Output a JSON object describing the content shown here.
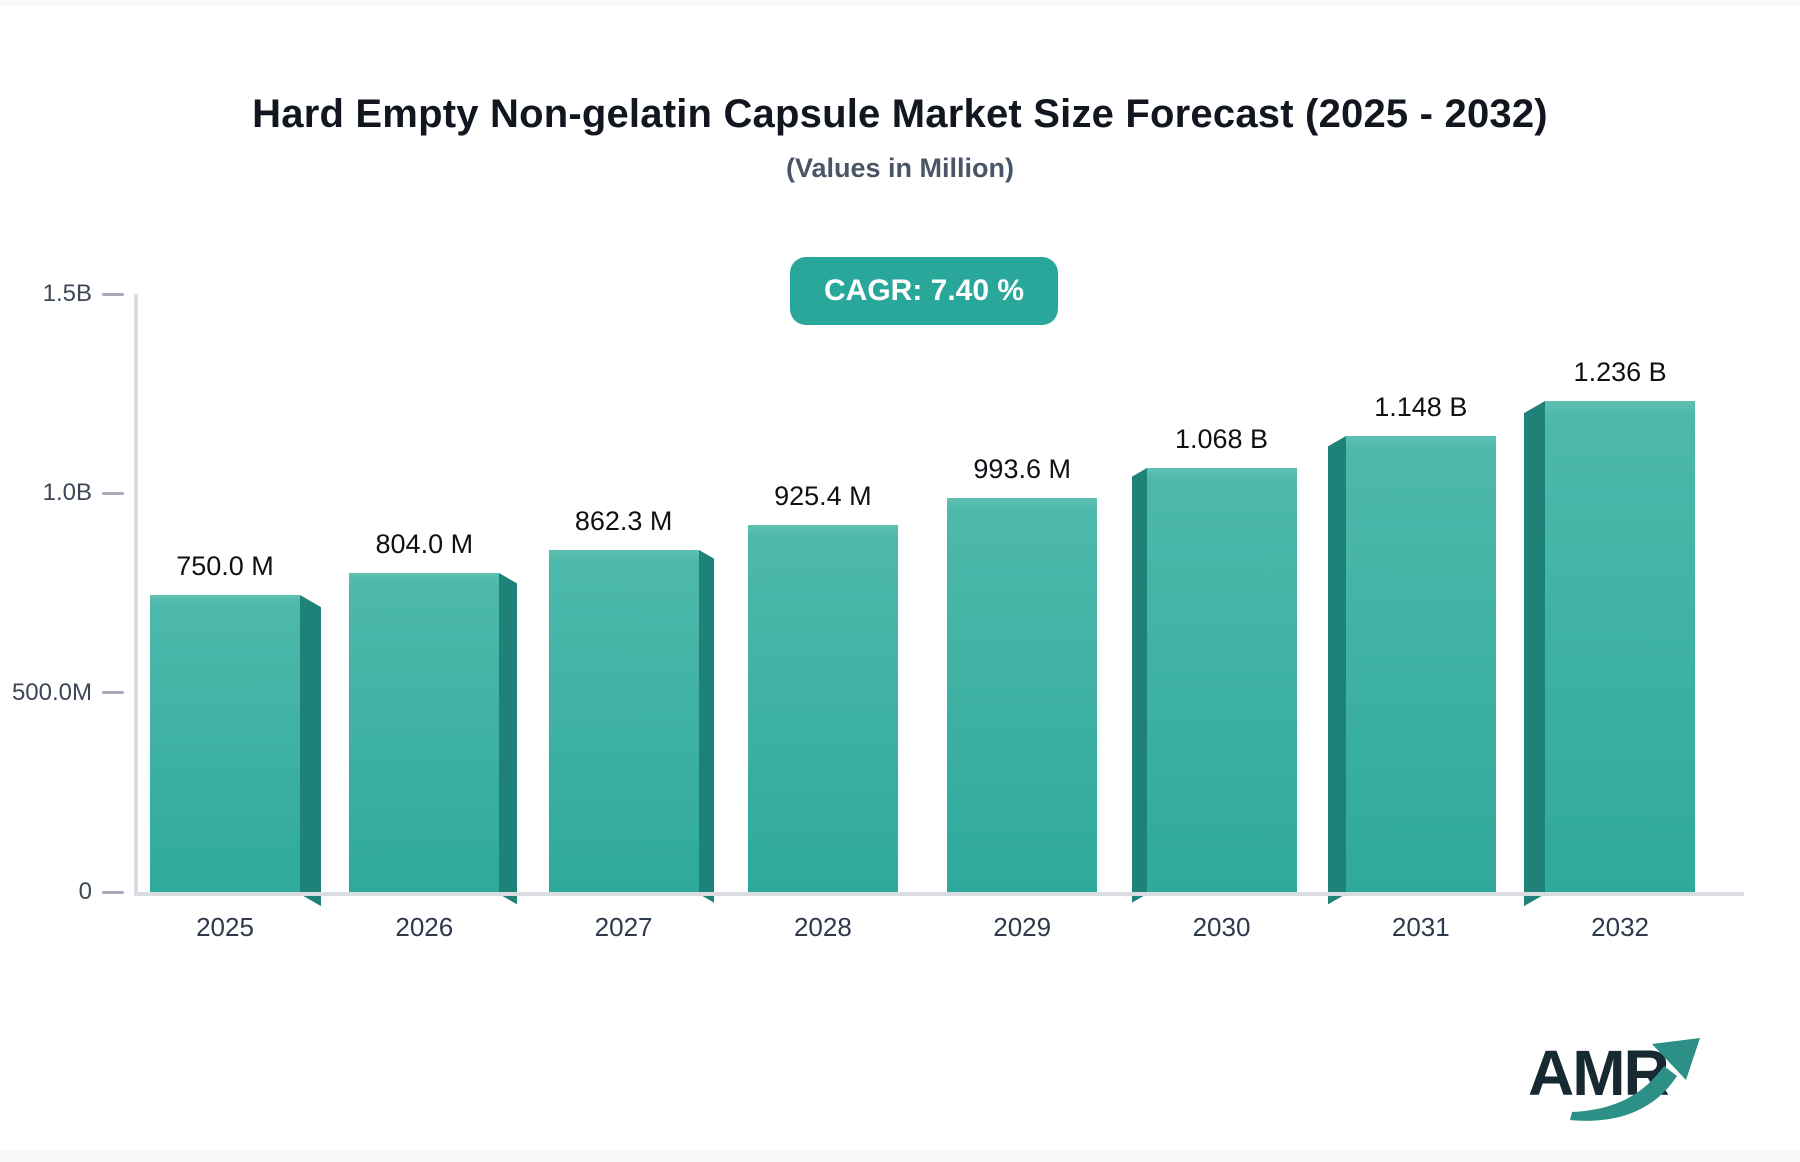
{
  "page": {
    "title": "Hard Empty Non-gelatin Capsule Market Size Forecast (2025 - 2032)",
    "subtitle": "(Values in Million)"
  },
  "badge": {
    "label": "CAGR: 7.40 %",
    "color": "#2aa79b"
  },
  "chart_data": {
    "type": "bar",
    "title": "Hard Empty Non-gelatin Capsule Market Size Forecast (2025 - 2032)",
    "subtitle": "(Values in Million)",
    "cagr": "7.40 %",
    "categories": [
      "2025",
      "2026",
      "2027",
      "2028",
      "2029",
      "2030",
      "2031",
      "2032"
    ],
    "values_millions": [
      750.0,
      804.0,
      862.3,
      925.4,
      993.6,
      1068,
      1148,
      1236
    ],
    "bar_labels": [
      "750.0 M",
      "804.0 M",
      "862.3 M",
      "925.4 M",
      "993.6 M",
      "1.068 B",
      "1.148 B",
      "1.236 B"
    ],
    "yticks": [
      {
        "label": "1.5B",
        "value": 1500
      },
      {
        "label": "1.0B",
        "value": 1000
      },
      {
        "label": "500.0M",
        "value": 500
      },
      {
        "label": "0",
        "value": 0
      }
    ],
    "ylim": [
      0,
      1500
    ],
    "grid": false,
    "legend": false,
    "bar_color_top": "#4db9aa",
    "bar_color_bottom": "#2ea99c",
    "bar_side_color": "#1f8278",
    "bar_top_highlight": "#5fc0b2"
  },
  "logo": {
    "text": "AMR",
    "arrow_color": "#2d9087"
  }
}
